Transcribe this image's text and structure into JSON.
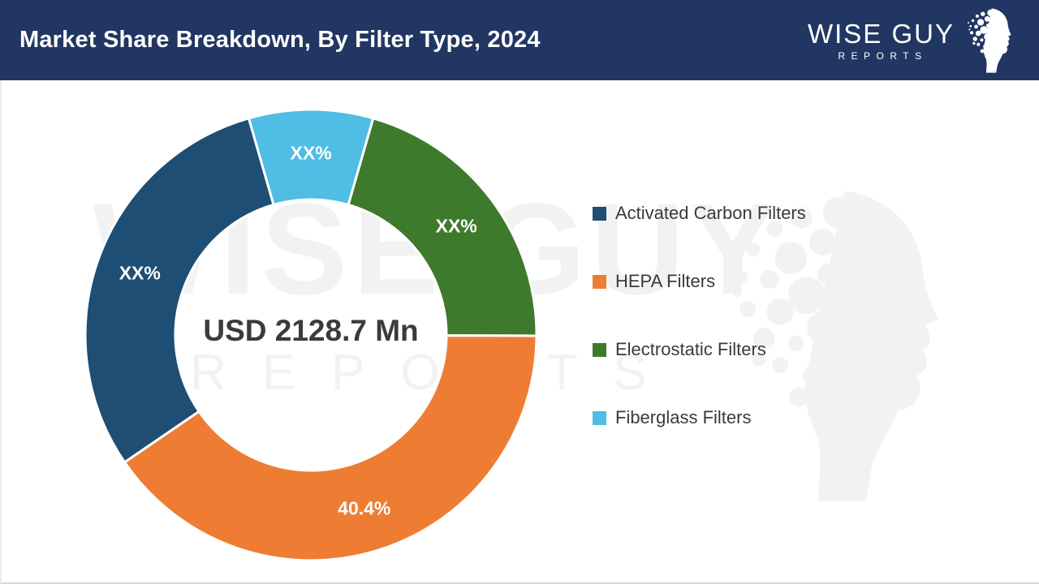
{
  "header": {
    "title": "Market Share Breakdown, By Filter Type, 2024",
    "logo": {
      "line1": "WISE GUY",
      "line2": "REPORTS"
    }
  },
  "watermark": {
    "line1": "WISE GUY",
    "line2": "REPORTS"
  },
  "chart_data": {
    "type": "pie",
    "subtype": "donut",
    "title": "Market Share Breakdown, By Filter Type, 2024",
    "center_total": "USD 2128.7 Mn",
    "unit": "percent of market share",
    "direction": "clockwise",
    "start_angle_deg": -16,
    "legend_position": "right",
    "segments": [
      {
        "label": "Fiberglass Filters",
        "value_pct": 8.9,
        "display_label": "XX%",
        "color": "#4fbde4"
      },
      {
        "label": "Electrostatic Filters",
        "value_pct": 20.6,
        "display_label": "XX%",
        "color": "#3e7a2c"
      },
      {
        "label": "HEPA Filters",
        "value_pct": 40.4,
        "display_label": "40.4%",
        "color": "#ee7d33"
      },
      {
        "label": "Activated Carbon Filters",
        "value_pct": 30.1,
        "display_label": "XX%",
        "color": "#1e4e73"
      }
    ],
    "legend": [
      {
        "label": "Activated Carbon Filters",
        "color": "#1e4e73"
      },
      {
        "label": "HEPA Filters",
        "color": "#ee7d33"
      },
      {
        "label": "Electrostatic Filters",
        "color": "#3e7a2c"
      },
      {
        "label": "Fiberglass Filters",
        "color": "#4fbde4"
      }
    ]
  }
}
